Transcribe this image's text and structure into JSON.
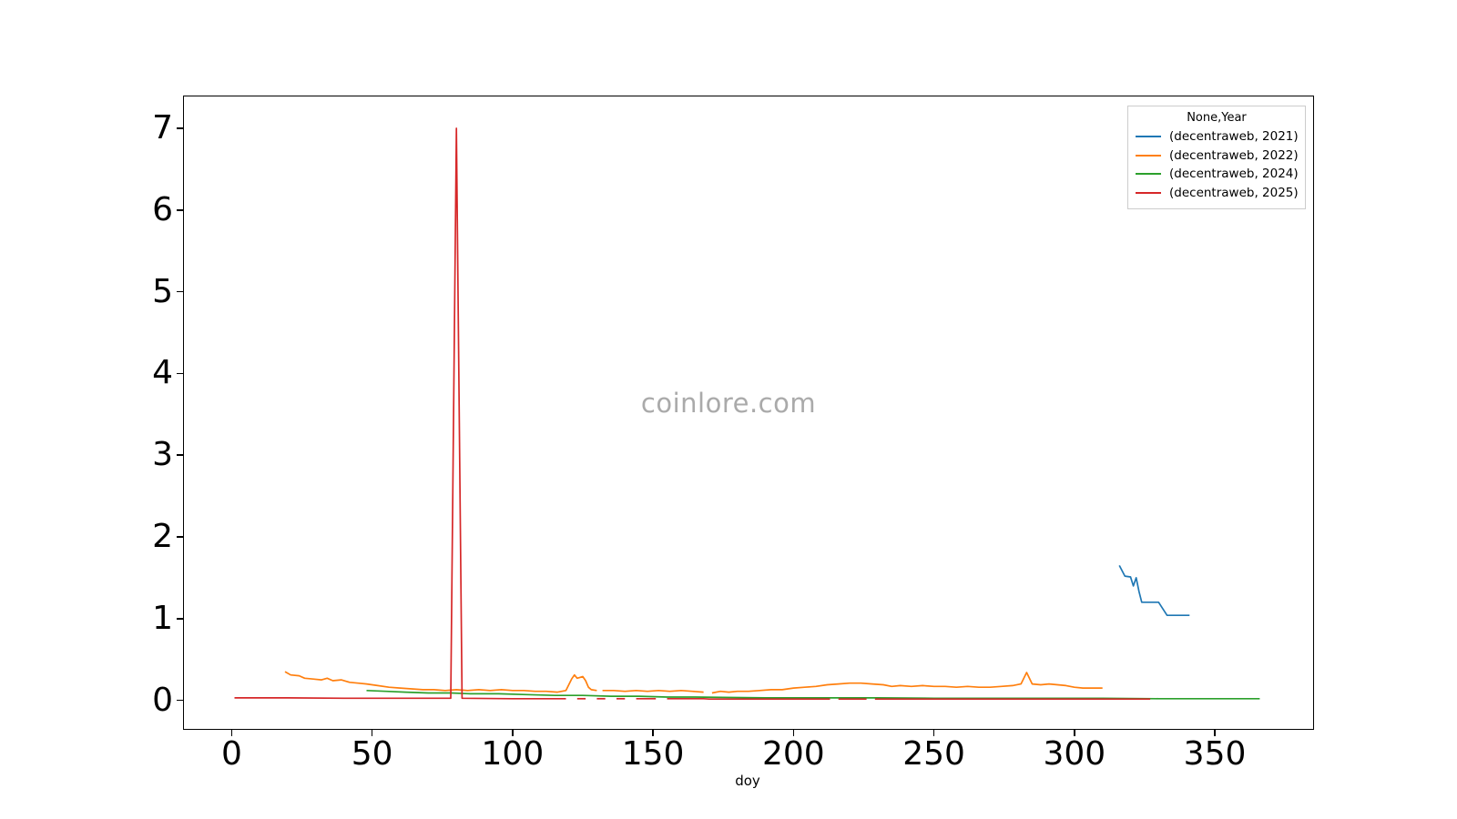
{
  "watermark": "coinlore.com",
  "legend": {
    "title": "None,Year"
  },
  "chart_data": {
    "type": "line",
    "title": "",
    "xlabel": "doy",
    "ylabel": "",
    "legend_position": "upper right",
    "grid": false,
    "x_ticks": [
      0,
      50,
      100,
      150,
      200,
      250,
      300,
      350
    ],
    "y_ticks": [
      0,
      1,
      2,
      3,
      4,
      5,
      6,
      7
    ],
    "x_range": [
      -17,
      385
    ],
    "y_range": [
      -0.35,
      7.39
    ],
    "series": [
      {
        "name": "(decentraweb, 2021)",
        "color": "#1f77b4",
        "points": [
          [
            316,
            1.65
          ],
          [
            318,
            1.52
          ],
          [
            320,
            1.51
          ],
          [
            321,
            1.4
          ],
          [
            322,
            1.5
          ],
          [
            323,
            1.33
          ],
          [
            324,
            1.2
          ],
          [
            330,
            1.2
          ],
          [
            333,
            1.04
          ],
          [
            341,
            1.04
          ]
        ]
      },
      {
        "name": "(decentraweb, 2022)",
        "color": "#ff7f0e",
        "points": [
          [
            19,
            0.35
          ],
          [
            21,
            0.31
          ],
          [
            24,
            0.3
          ],
          [
            26,
            0.27
          ],
          [
            29,
            0.26
          ],
          [
            32,
            0.25
          ],
          [
            34,
            0.27
          ],
          [
            36,
            0.24
          ],
          [
            39,
            0.25
          ],
          [
            42,
            0.22
          ],
          [
            45,
            0.21
          ],
          [
            48,
            0.2
          ],
          [
            52,
            0.18
          ],
          [
            56,
            0.16
          ],
          [
            60,
            0.15
          ],
          [
            64,
            0.14
          ],
          [
            68,
            0.13
          ],
          [
            72,
            0.13
          ],
          [
            76,
            0.12
          ],
          [
            80,
            0.13
          ],
          [
            84,
            0.12
          ],
          [
            88,
            0.13
          ],
          [
            92,
            0.12
          ],
          [
            96,
            0.13
          ],
          [
            100,
            0.12
          ],
          [
            104,
            0.12
          ],
          [
            108,
            0.11
          ],
          [
            112,
            0.11
          ],
          [
            116,
            0.1
          ],
          [
            119,
            0.12
          ],
          [
            121,
            0.26
          ],
          [
            122,
            0.31
          ],
          [
            123,
            0.27
          ],
          [
            125,
            0.29
          ],
          [
            126,
            0.24
          ],
          [
            127,
            0.16
          ],
          [
            128,
            0.13
          ],
          [
            130,
            0.12
          ],
          null,
          [
            132,
            0.12
          ],
          [
            136,
            0.12
          ],
          [
            140,
            0.11
          ],
          [
            144,
            0.12
          ],
          [
            148,
            0.11
          ],
          [
            152,
            0.12
          ],
          [
            156,
            0.11
          ],
          [
            160,
            0.12
          ],
          [
            164,
            0.11
          ],
          [
            168,
            0.1
          ],
          null,
          [
            171,
            0.09
          ],
          [
            174,
            0.11
          ],
          [
            177,
            0.1
          ],
          [
            180,
            0.11
          ],
          [
            184,
            0.11
          ],
          [
            188,
            0.12
          ],
          [
            192,
            0.13
          ],
          [
            196,
            0.13
          ],
          [
            200,
            0.15
          ],
          [
            204,
            0.16
          ],
          [
            208,
            0.17
          ],
          [
            212,
            0.19
          ],
          [
            216,
            0.2
          ],
          [
            220,
            0.21
          ],
          [
            224,
            0.21
          ],
          [
            228,
            0.2
          ],
          [
            232,
            0.19
          ],
          [
            235,
            0.17
          ],
          [
            238,
            0.18
          ],
          [
            242,
            0.17
          ],
          [
            246,
            0.18
          ],
          [
            250,
            0.17
          ],
          [
            254,
            0.17
          ],
          [
            258,
            0.16
          ],
          [
            262,
            0.17
          ],
          [
            266,
            0.16
          ],
          [
            270,
            0.16
          ],
          [
            274,
            0.17
          ],
          [
            278,
            0.18
          ],
          [
            281,
            0.2
          ],
          [
            283,
            0.34
          ],
          [
            285,
            0.2
          ],
          [
            288,
            0.19
          ],
          [
            291,
            0.2
          ],
          [
            294,
            0.19
          ],
          [
            297,
            0.18
          ],
          [
            300,
            0.16
          ],
          [
            303,
            0.15
          ],
          [
            306,
            0.15
          ],
          [
            310,
            0.15
          ]
        ]
      },
      {
        "name": "(decentraweb, 2024)",
        "color": "#2ca02c",
        "points": [
          [
            48,
            0.12
          ],
          [
            55,
            0.11
          ],
          [
            62,
            0.1
          ],
          [
            70,
            0.09
          ],
          [
            78,
            0.09
          ],
          [
            85,
            0.08
          ],
          [
            95,
            0.08
          ],
          [
            105,
            0.07
          ],
          [
            115,
            0.06
          ],
          [
            125,
            0.06
          ],
          [
            135,
            0.05
          ],
          [
            145,
            0.05
          ],
          [
            155,
            0.04
          ],
          [
            165,
            0.04
          ],
          [
            175,
            0.035
          ],
          [
            190,
            0.03
          ],
          [
            210,
            0.03
          ],
          [
            230,
            0.03
          ],
          [
            250,
            0.025
          ],
          [
            270,
            0.025
          ],
          [
            290,
            0.025
          ],
          [
            310,
            0.025
          ],
          [
            330,
            0.02
          ],
          [
            350,
            0.02
          ],
          [
            366,
            0.02
          ]
        ]
      },
      {
        "name": "(decentraweb, 2025)",
        "color": "#d62728",
        "points": [
          [
            1,
            0.03
          ],
          [
            20,
            0.03
          ],
          [
            40,
            0.025
          ],
          [
            60,
            0.025
          ],
          [
            78,
            0.025
          ],
          [
            80,
            7.0
          ],
          [
            82,
            0.025
          ],
          [
            100,
            0.02
          ],
          [
            110,
            0.02
          ],
          [
            119,
            0.02
          ],
          null,
          [
            123,
            0.02
          ],
          [
            126,
            0.02
          ],
          null,
          [
            130,
            0.02
          ],
          [
            133,
            0.02
          ],
          null,
          [
            137,
            0.02
          ],
          [
            140,
            0.02
          ],
          null,
          [
            144,
            0.02
          ],
          [
            151,
            0.02
          ],
          null,
          [
            155,
            0.02
          ],
          [
            168,
            0.02
          ],
          [
            170,
            0.015
          ],
          [
            213,
            0.015
          ],
          null,
          [
            216,
            0.015
          ],
          [
            226,
            0.015
          ],
          null,
          [
            229,
            0.015
          ],
          [
            327,
            0.015
          ]
        ]
      }
    ]
  }
}
